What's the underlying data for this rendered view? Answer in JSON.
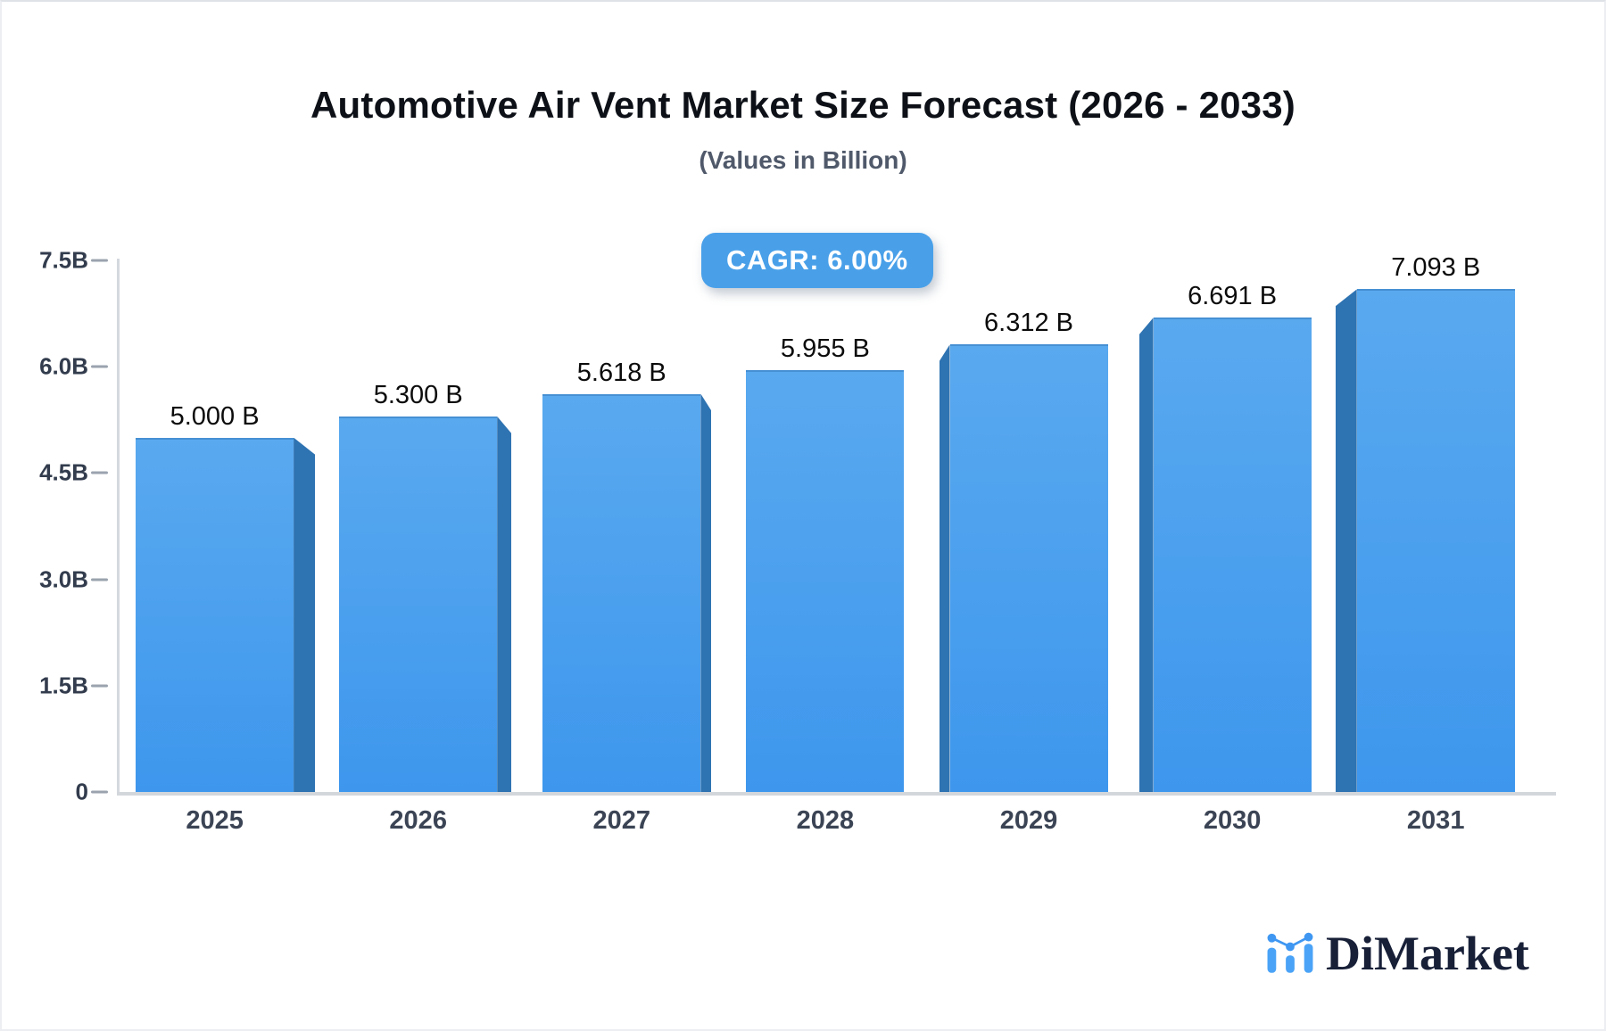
{
  "title": "Automotive Air Vent Market Size Forecast (2026 - 2033)",
  "subtitle": "(Values in Billion)",
  "badge": {
    "label": "CAGR: 6.00%"
  },
  "chart_data": {
    "type": "bar",
    "title": "Automotive Air Vent Market Size Forecast (2026 - 2033)",
    "subtitle": "(Values in Billion)",
    "categories": [
      "2025",
      "2026",
      "2027",
      "2028",
      "2029",
      "2030",
      "2031"
    ],
    "values": [
      5.0,
      5.3,
      5.618,
      5.955,
      6.312,
      6.691,
      7.093
    ],
    "value_labels": [
      "5.000 B",
      "5.300 B",
      "5.618 B",
      "5.955 B",
      "6.312 B",
      "6.691 B",
      "7.093 B"
    ],
    "xlabel": "",
    "ylabel": "",
    "ylim": [
      0,
      7.5
    ],
    "y_ticks": [
      "7.5B",
      "6.0B",
      "4.5B",
      "3.0B",
      "1.5B",
      "0"
    ],
    "y_tick_values": [
      7.5,
      6.0,
      4.5,
      3.0,
      1.5,
      0
    ],
    "grid": false,
    "legend": false,
    "bar_style": "3d-perspective",
    "cagr_annotation": "CAGR: 6.00%"
  },
  "colors": {
    "badge_bg": "#49a0e9",
    "bar_face_top": "#59a9ef",
    "bar_face_bottom": "#3e97ed",
    "bar_side": "#2e73b2",
    "axis_line": "#d4d8df",
    "tick_text": "#323c4d",
    "value_text": "#0c0c0c",
    "logo_navy": "#182038",
    "logo_blue": "#4aa3f7"
  },
  "branding": {
    "logo_text": "DiMarket",
    "logo_icon": "bar-chart-logo-icon"
  }
}
